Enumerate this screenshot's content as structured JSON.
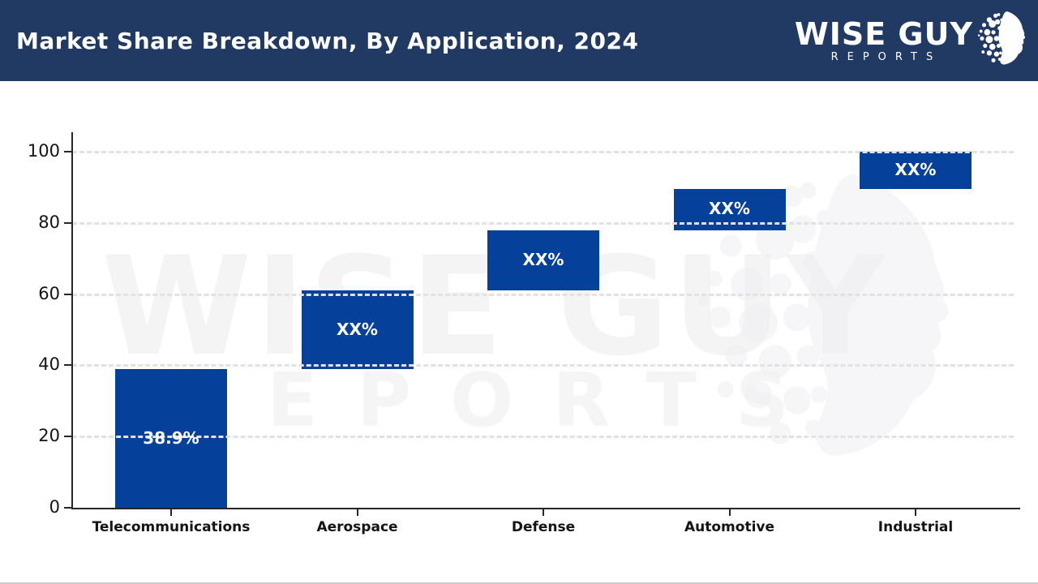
{
  "header": {
    "title": "Market Share Breakdown, By Application, 2024",
    "logo": {
      "line1": "WISE GUY",
      "line2": "REPORTS"
    }
  },
  "watermark": {
    "line1": "WISE GUY",
    "line2": "REPORTS"
  },
  "colors": {
    "header_bg": "#213a64",
    "bar": "#05409b",
    "bar_label": "#ffffff",
    "axis": "#262626",
    "grid": "#e2e2e2",
    "text": "#141414",
    "watermark": "#f3f3f6"
  },
  "chart_data": {
    "type": "bar",
    "subtype": "waterfall",
    "title": "Market Share Breakdown, By Application, 2024",
    "xlabel": "",
    "ylabel": "",
    "categories": [
      "Telecommunications",
      "Aerospace",
      "Defense",
      "Automotive",
      "Industrial"
    ],
    "segments": [
      {
        "category": "Telecommunications",
        "start": 0,
        "end": 38.9,
        "label": "38.9%"
      },
      {
        "category": "Aerospace",
        "start": 38.9,
        "end": 61,
        "label": "XX%"
      },
      {
        "category": "Defense",
        "start": 61,
        "end": 78,
        "label": "XX%"
      },
      {
        "category": "Automotive",
        "start": 78,
        "end": 89.5,
        "label": "XX%"
      },
      {
        "category": "Industrial",
        "start": 89.5,
        "end": 100,
        "label": "XX%"
      }
    ],
    "yticks": [
      0,
      20,
      40,
      60,
      80,
      100
    ],
    "ylim": [
      0,
      105.5
    ],
    "grid": "horizontal-dashed",
    "legend": "none"
  }
}
